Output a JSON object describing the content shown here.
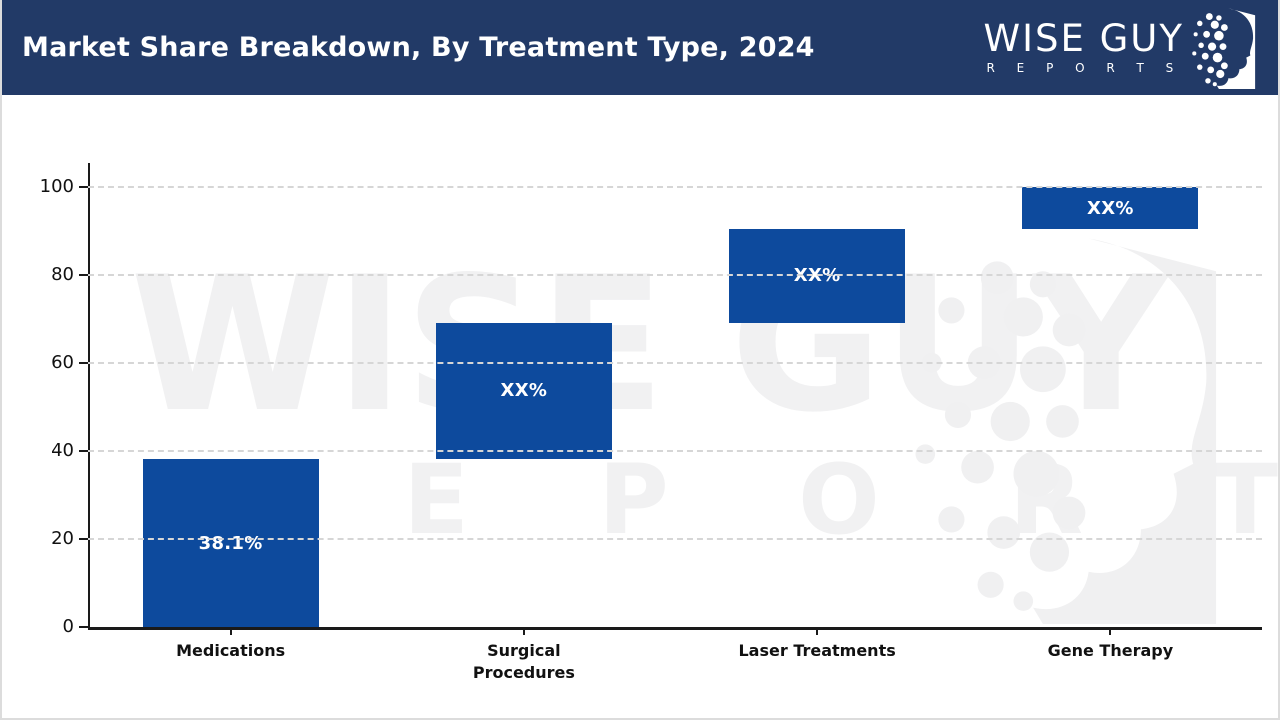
{
  "header": {
    "title": "Market Share Breakdown, By Treatment Type, 2024",
    "bg_color": "#223a67",
    "logo": {
      "wordmark": "WISE GUY",
      "subtext": "R E P O R T S"
    }
  },
  "watermark": {
    "wordmark": "WISE GUY",
    "subtext": "R E P O R T S"
  },
  "chart_data": {
    "type": "bar",
    "variant": "waterfall",
    "title": "Market Share Breakdown, By Treatment Type, 2024",
    "categories": [
      "Medications",
      "Surgical Procedures",
      "Laser Treatments",
      "Gene Therapy"
    ],
    "bars": [
      {
        "category": "Medications",
        "start": 0,
        "end": 38.1,
        "label": "38.1%"
      },
      {
        "category": "Surgical Procedures",
        "start": 38.1,
        "end": 69.2,
        "label": "XX%"
      },
      {
        "category": "Laser Treatments",
        "start": 69.2,
        "end": 90.4,
        "label": "XX%"
      },
      {
        "category": "Gene Therapy",
        "start": 90.4,
        "end": 100,
        "label": "XX%"
      }
    ],
    "yticks": [
      0,
      20,
      40,
      60,
      80,
      100
    ],
    "ylim": [
      0,
      105.5
    ],
    "xlabel": "",
    "ylabel": "",
    "grid": "horizontal-dashed",
    "legend": false,
    "bar_color": "#0d4a9d",
    "bar_label_color": "#ffffff",
    "axis_color": "#1a1a1a",
    "grid_color": "#d6d6d6"
  }
}
